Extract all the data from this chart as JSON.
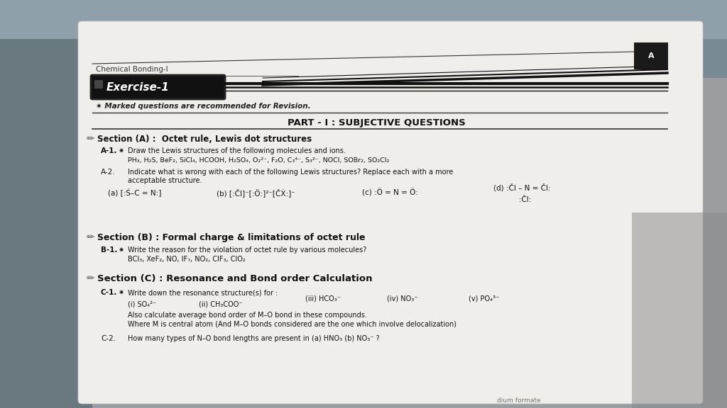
{
  "title_chapter": "Chemical Bonding-I",
  "title_exercise": "Exercise-1",
  "marked_note": "✷ Marked questions are recommended for Revision.",
  "part_title": "PART - I : SUBJECTIVE QUESTIONS",
  "section_a_title": "Section (A) :  Octet rule, Lewis dot structures",
  "a1_label": "A-1.",
  "a1_star": "✷",
  "a1_text": "Draw the Lewis structures of the following molecules and ions.",
  "a1_molecules": "PH₃, H₂S, BeF₂, SiCl₄, HCOOH, H₂SO₄, O₂²⁻, F₂O, C₃⁴⁻, S₃²⁻, NOCl, SOBr₂, SO₂Cl₂",
  "a2_label": "A-2.",
  "a2_text1": "Indicate what is wrong with each of the following Lewis structures? Replace each with a more",
  "a2_text2": "acceptable structure.",
  "a2_a": "(a) [:Ṡ–C = Ṅ:]",
  "a2_b": "(b) [:Čl]⁻[:Ö:]²⁻[ČẊ:]⁻",
  "a2_c": "(c) :Ö = N = Ö:",
  "a2_d1": "(d) :Čl – Ṅ = Čl:",
  "a2_d2": "           :Čl:",
  "section_b_title": "Section (B) : Formal charge & limitations of octet rule",
  "b1_label": "B-1.",
  "b1_star": "✷",
  "b1_text": "Write the reason for the violation of octet rule by various molecules?",
  "b1_molecules": "BCl₃, XeF₂, NO, IF₇, NO₂, ClF₃, ClO₂",
  "section_c_title": "Section (C) : Resonance and Bond order Calculation",
  "c1_label": "C-1.",
  "c1_star": "✷",
  "c1_text": "Write down the resonance structure(s) for :",
  "c1_i": "(i) SO₄²⁻",
  "c1_ii": "(ii) CH₃COO⁻",
  "c1_iii": "(iii) HCO₃⁻",
  "c1_iv": "(iv) NO₃⁻",
  "c1_v": "(v) PO₄³⁻",
  "c1_also1": "Also calculate average bond order of M–O bond in these compounds.",
  "c1_also2": "Where M is central atom (And M–O bonds considered are the one which involve delocalization)",
  "c2_label": "C-2.",
  "c2_text": "How many types of N–O bond lengths are present in (a) HNO₃ (b) NO₃⁻ ?",
  "bottom_text": "dium formate"
}
